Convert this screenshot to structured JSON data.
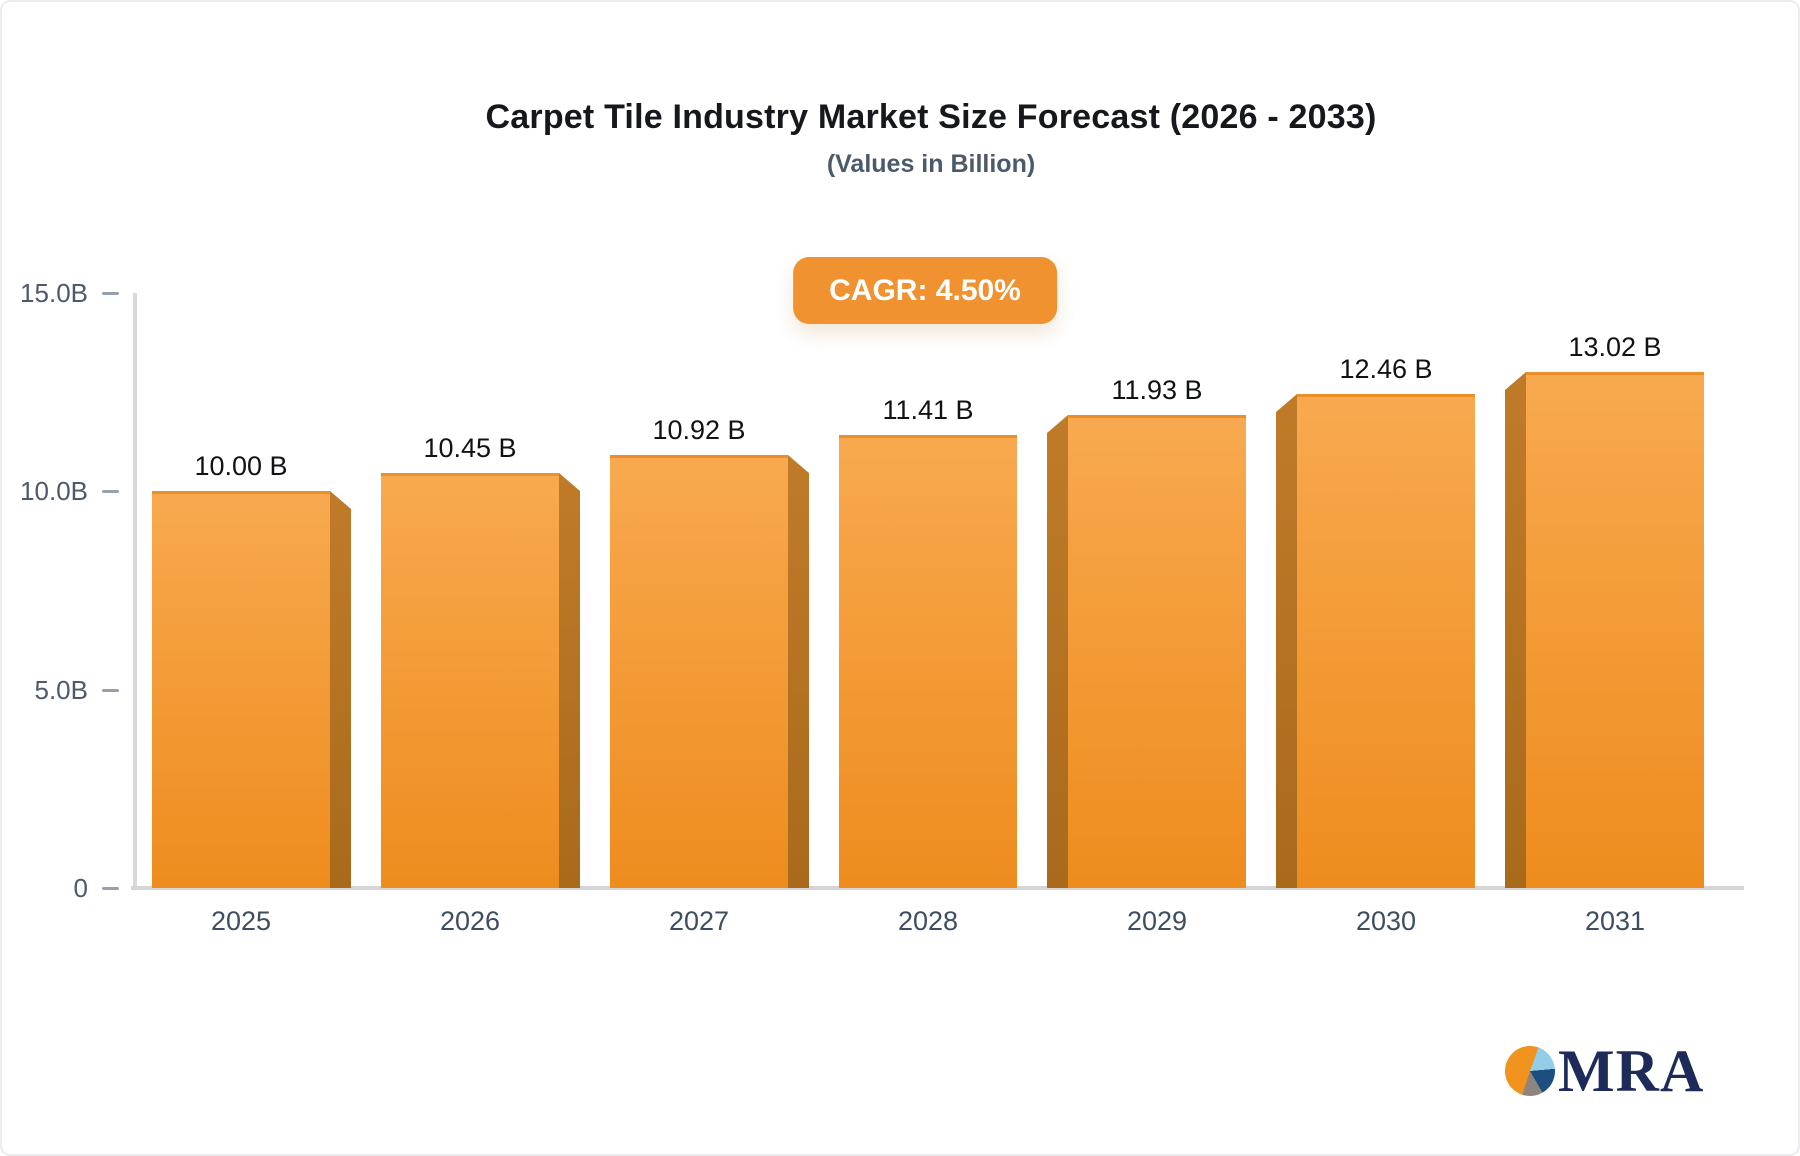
{
  "page": {
    "title": "Carpet Tile Industry Market Size Forecast (2026 - 2033)",
    "subtitle": "(Values in Billion)",
    "cagr_badge": "CAGR: 4.50%"
  },
  "chart_data": {
    "type": "bar",
    "title": "Carpet Tile Industry Market Size Forecast (2026 - 2033)",
    "subtitle": "(Values in Billion)",
    "cagr_label": "CAGR: 4.50%",
    "categories": [
      "2025",
      "2026",
      "2027",
      "2028",
      "2029",
      "2030",
      "2031"
    ],
    "values": [
      10.0,
      10.45,
      10.92,
      11.41,
      11.93,
      12.46,
      13.02
    ],
    "value_labels": [
      "10.00 B",
      "10.45 B",
      "10.92 B",
      "11.41 B",
      "11.93 B",
      "12.46 B",
      "13.02 B"
    ],
    "yticks": [
      {
        "label": "15.0B",
        "value": 15
      },
      {
        "label": "10.0B",
        "value": 10
      },
      {
        "label": "5.0B",
        "value": 5
      },
      {
        "label": "0",
        "value": 0
      }
    ],
    "ylim": [
      0,
      15
    ],
    "grid": false,
    "legend": "none",
    "bar_style": {
      "fill_top": "#f8a94f",
      "fill_bottom": "#ee8c1e",
      "shade_top": "#c07b29",
      "shade_bottom": "#a96a1c"
    },
    "shadow_sides": [
      "right",
      "right",
      "right",
      "none",
      "left",
      "left",
      "left"
    ]
  },
  "colors": {
    "accent_orange": "#f0922f",
    "title_text": "#16181d",
    "subtitle_text": "#4b5a6b",
    "axis_text": "#4c5a6c",
    "axis_line": "#d5d5d8"
  },
  "logo": {
    "text": "MRA",
    "text_color": "#1c2b5a",
    "pie_colors": {
      "orange": "#f0931f",
      "light_blue": "#94cde8",
      "navy": "#1c4e80",
      "gray": "#8d8680"
    }
  }
}
